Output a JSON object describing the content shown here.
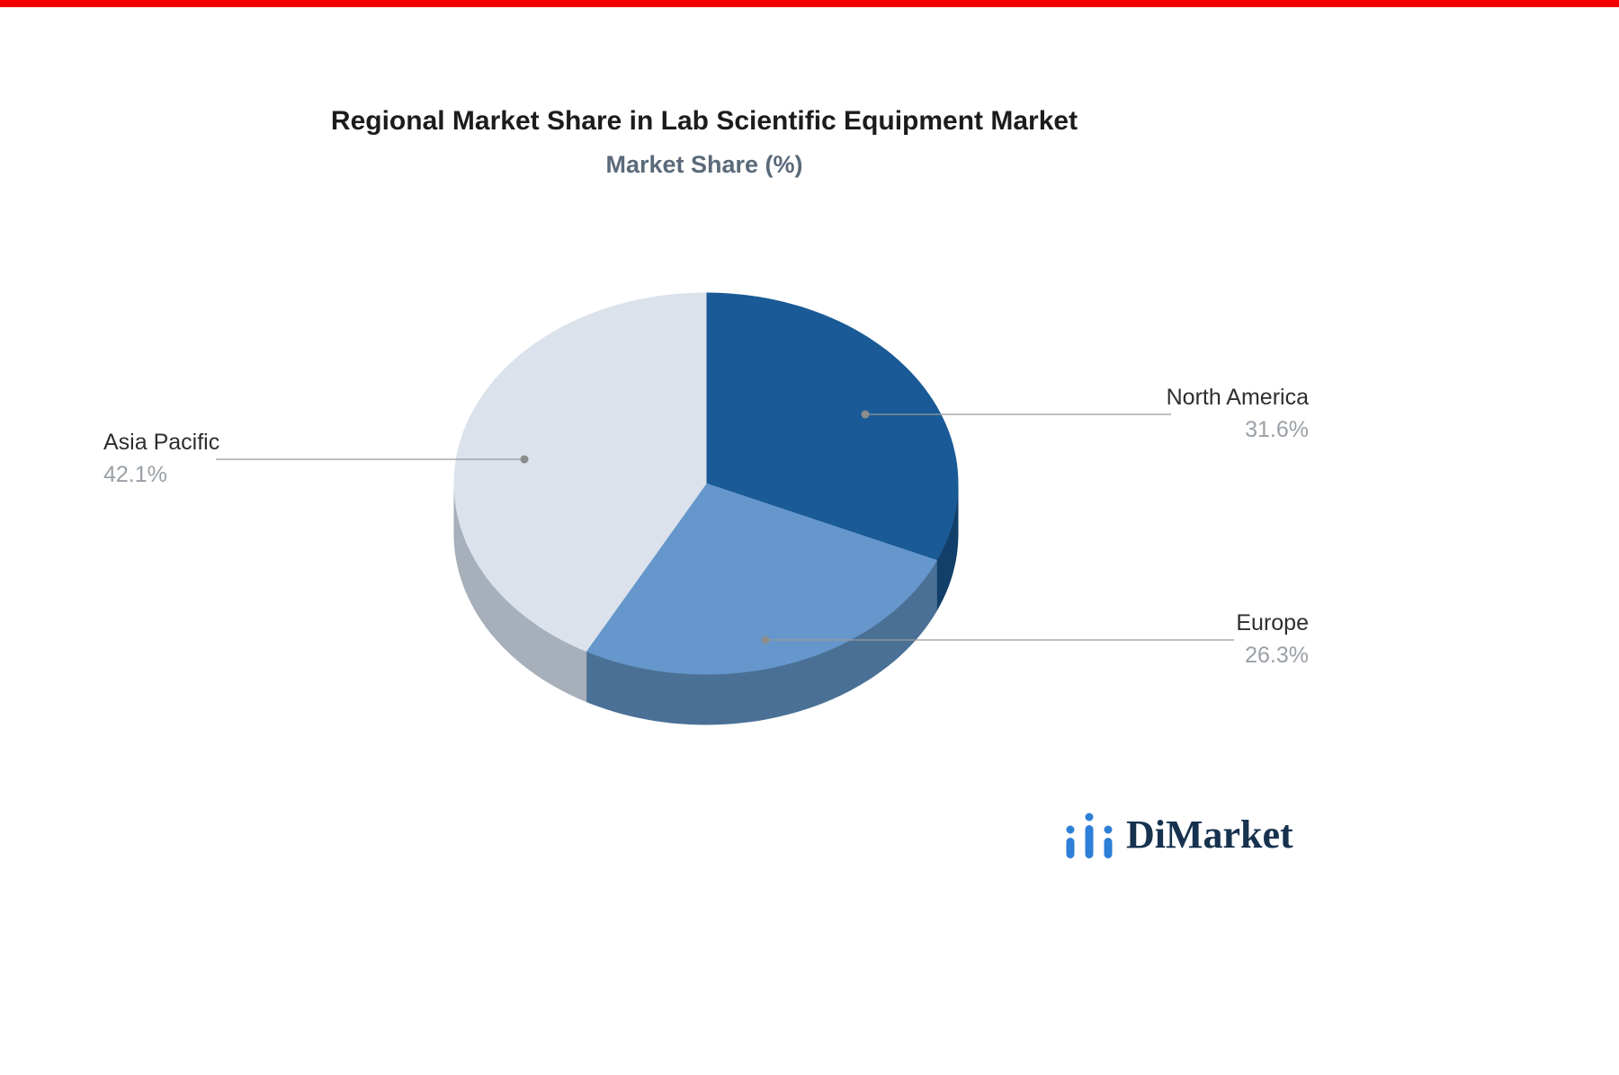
{
  "page": {
    "background_color": "#ffffff",
    "top_bar_color": "#f40000"
  },
  "chart_data": {
    "type": "pie",
    "style": "3d",
    "title": "Regional Market Share in Lab Scientific Equipment Market",
    "subtitle": "Market Share (%)",
    "unit": "%",
    "categories": [
      "North America",
      "Europe",
      "Asia Pacific"
    ],
    "values": [
      31.6,
      26.3,
      42.1
    ],
    "start_angle_deg": 0,
    "direction": "clockwise",
    "legend": "none",
    "labels": [
      {
        "name": "North America",
        "value_label": "31.6%"
      },
      {
        "name": "Europe",
        "value_label": "26.3%"
      },
      {
        "name": "Asia Pacific",
        "value_label": "42.1%"
      }
    ],
    "colors": {
      "slices": [
        "#1a5a96",
        "#6697cc",
        "#dbe2ec"
      ],
      "sides": [
        "#123f69",
        "#4a7095",
        "#a6afba"
      ],
      "leader_line": "#999999",
      "leader_dot": "#8c8c8c",
      "label_name": "#2e2e2e",
      "label_value": "#9aa0a6"
    }
  },
  "branding": {
    "logo_text": "DiMarket",
    "logo_text_color": "#16324f",
    "logo_icon_color": "#2e7fd8"
  }
}
